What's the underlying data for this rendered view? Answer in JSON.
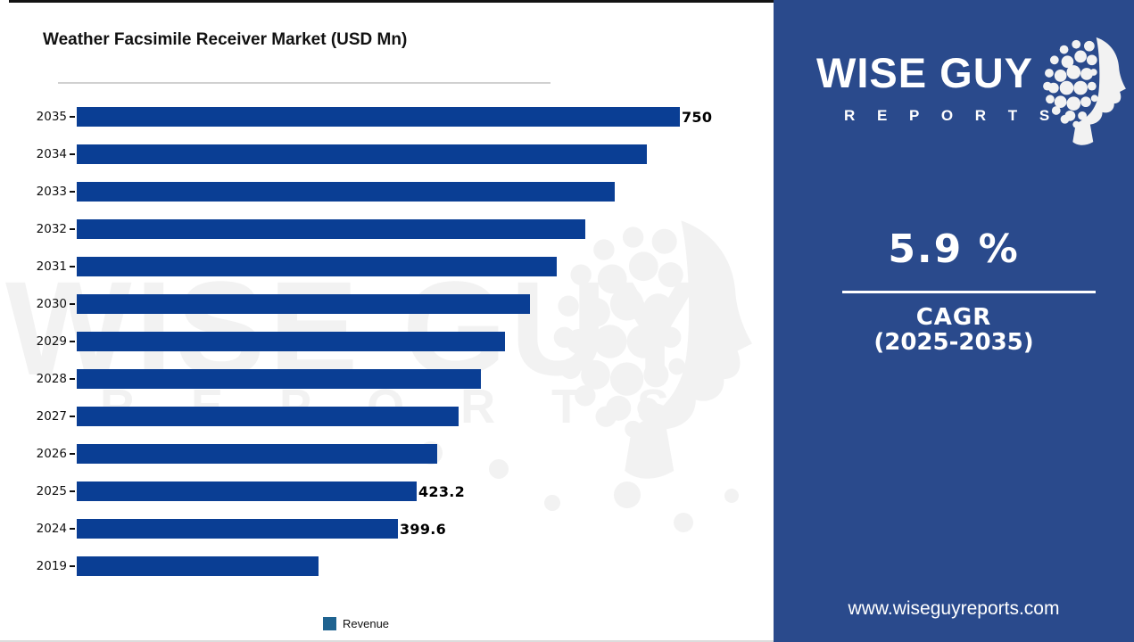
{
  "chart": {
    "title": "Weather Facsimile Receiver Market (USD Mn)",
    "legend_label": "Revenue"
  },
  "chart_data": {
    "type": "bar",
    "orientation": "horizontal",
    "title": "Weather Facsimile Receiver Market (USD Mn)",
    "xlabel": "",
    "ylabel": "",
    "categories": [
      "2035",
      "2034",
      "2033",
      "2032",
      "2031",
      "2030",
      "2029",
      "2028",
      "2027",
      "2026",
      "2025",
      "2024",
      "2019"
    ],
    "values": [
      750,
      709.0,
      669.5,
      632.2,
      596.9,
      563.7,
      532.3,
      502.6,
      474.6,
      448.2,
      423.2,
      399.6,
      300.5
    ],
    "data_labels": {
      "2035": "750",
      "2025": "423.2",
      "2024": "399.6"
    },
    "xlim": [
      0,
      850
    ],
    "grid": false,
    "legend": [
      "Revenue"
    ],
    "legend_position": "bottom"
  },
  "colors": {
    "bar": "#0a3e94",
    "legend_swatch": "#1f6390",
    "panel_bg": "#2a4a8c",
    "watermark": "#f2f2f2"
  },
  "watermark": {
    "line1": "WISE GUY",
    "line2": "R E P O R T S"
  },
  "brand_panel": {
    "logo_line1": "WISE GUY",
    "logo_line2": "R E P O R T S",
    "cagr_value": "5.9 %",
    "cagr_label": "CAGR",
    "cagr_range": "(2025-2035)",
    "website": "www.wiseguyreports.com"
  }
}
